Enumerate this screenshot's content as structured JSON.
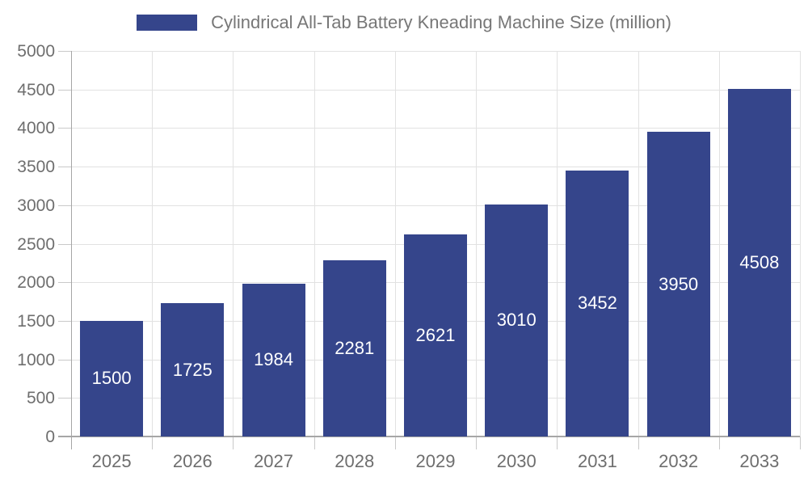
{
  "chart_data": {
    "type": "bar",
    "title": "Cylindrical All-Tab Battery Kneading Machine Size (million)",
    "categories": [
      "2025",
      "2026",
      "2027",
      "2028",
      "2029",
      "2030",
      "2031",
      "2032",
      "2033"
    ],
    "values": [
      1500,
      1725,
      1984,
      2281,
      2621,
      3010,
      3452,
      3950,
      4508
    ],
    "series_name": "Cylindrical All-Tab Battery Kneading Machine Size (million)",
    "xlabel": "",
    "ylabel": "",
    "ylim": [
      0,
      5000
    ],
    "ytick_step": 500,
    "ytick_labels": [
      "0",
      "500",
      "1000",
      "1500",
      "2000",
      "2500",
      "3000",
      "3500",
      "4000",
      "4500",
      "5000"
    ],
    "grid": true,
    "value_labels_shown": true,
    "legend_position": "top-center",
    "colors": {
      "bar": "#35458B",
      "value_label": "#FFFFFF",
      "axis_text": "#6E6E6E",
      "legend_text": "#777777",
      "gridline": "#E2E2E2",
      "axis_line": "#A6A6A6",
      "tick": "#C9C9C9",
      "background": "#FFFFFF"
    }
  }
}
